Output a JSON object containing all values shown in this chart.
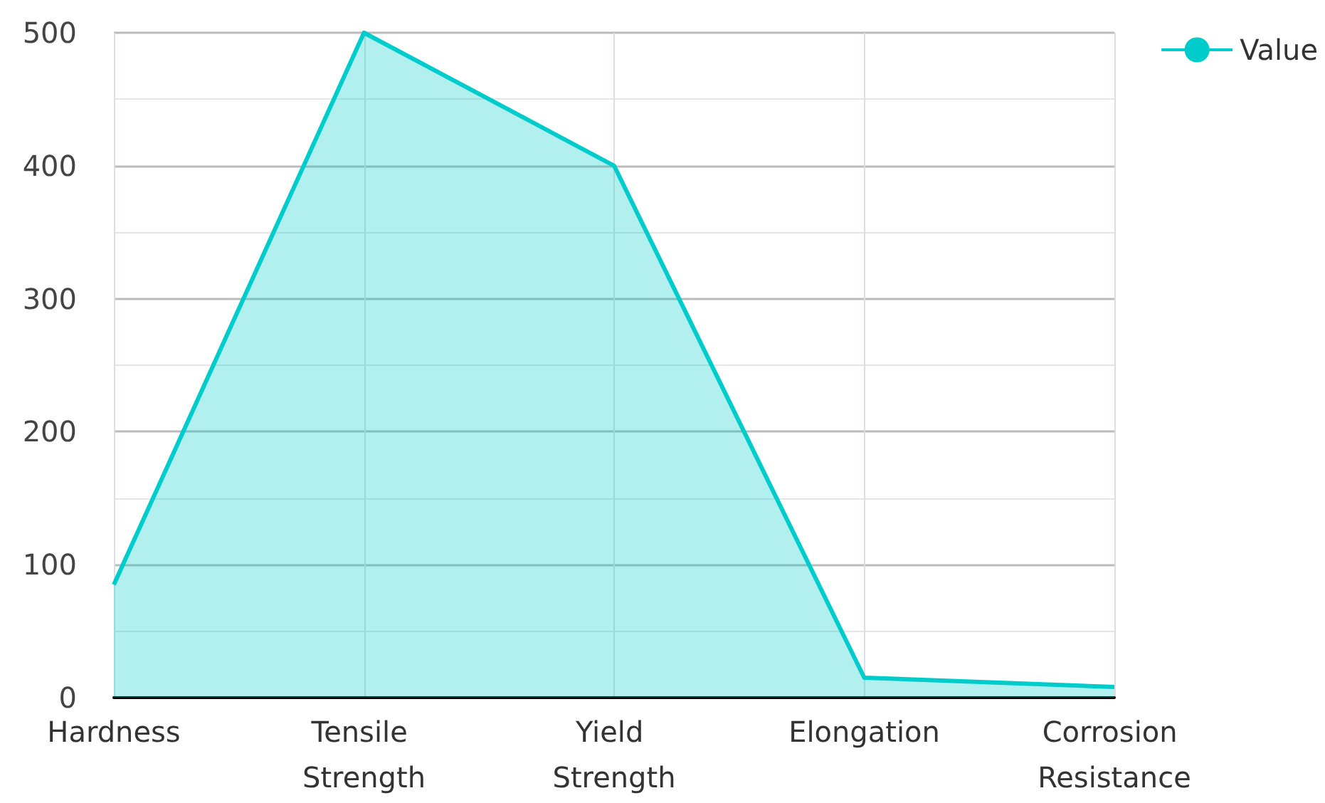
{
  "chart_data": {
    "type": "area",
    "categories": [
      "Hardness",
      "Tensile Strength",
      "Yield Strength",
      "Elongation",
      "Corrosion Resistance"
    ],
    "series": [
      {
        "name": "Value",
        "color": "#00cccc",
        "values": [
          85,
          500,
          400,
          15,
          8
        ]
      }
    ],
    "ylim": [
      0,
      500
    ],
    "yticks": [
      0,
      100,
      200,
      300,
      400,
      500
    ],
    "grid": true,
    "legend": "top right",
    "marker": "none",
    "line_style": "solid"
  }
}
